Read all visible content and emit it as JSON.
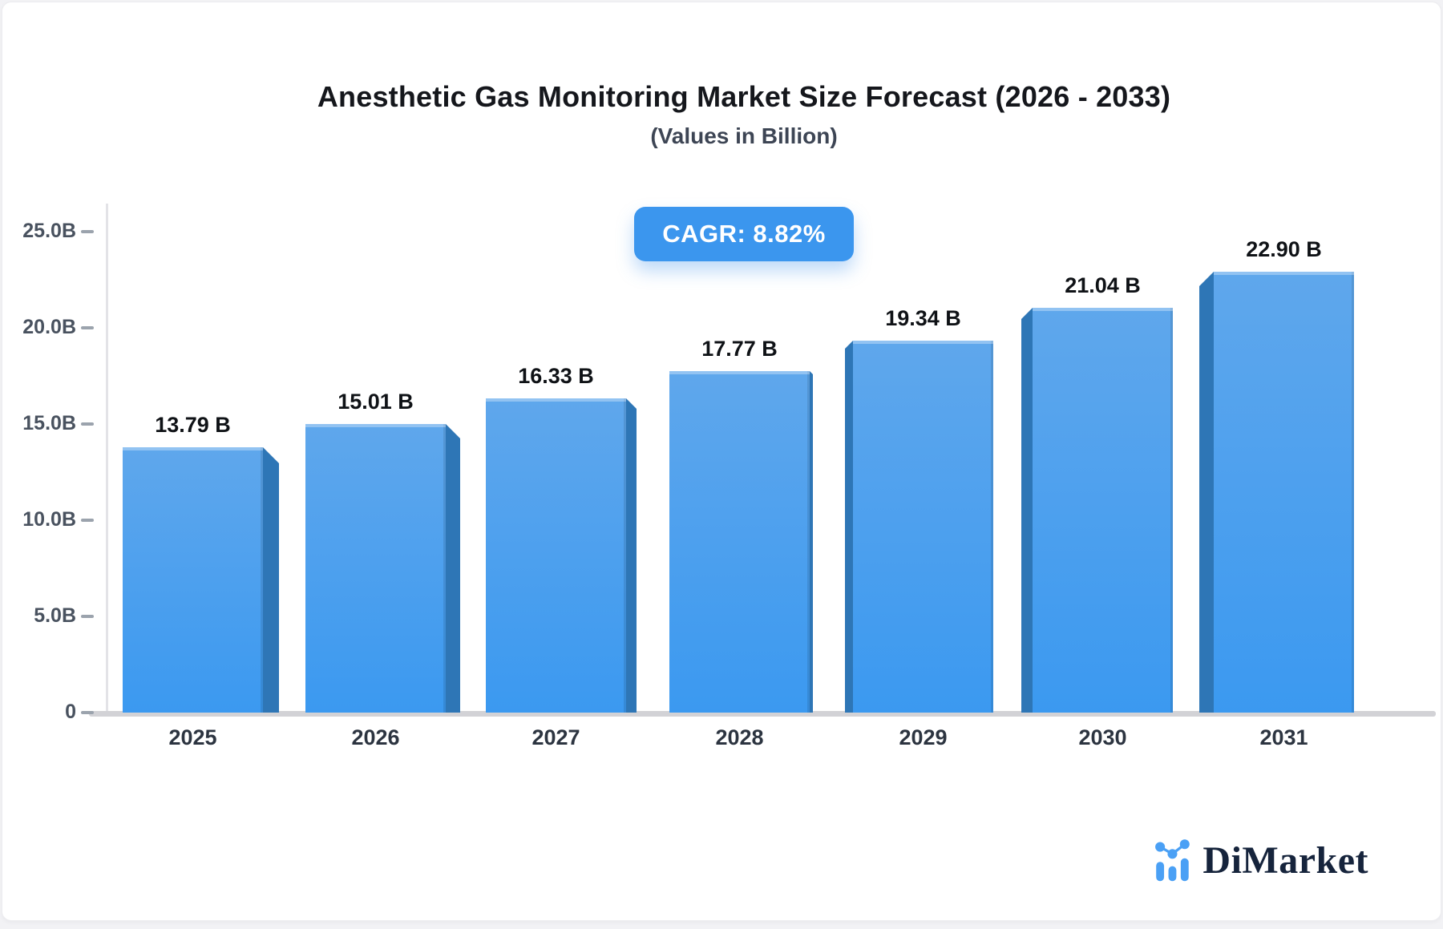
{
  "header": {
    "title": "Anesthetic Gas Monitoring Market Size Forecast (2026 - 2033)",
    "subtitle": "(Values in Billion)"
  },
  "badge": {
    "label": "CAGR: 8.82%",
    "background": "#3b96ee",
    "text_color": "#ffffff"
  },
  "chart_data": {
    "type": "bar",
    "title": "Anesthetic Gas Monitoring Market Size Forecast (2026 - 2033)",
    "subtitle": "(Values in Billion)",
    "categories": [
      "2025",
      "2026",
      "2027",
      "2028",
      "2029",
      "2030",
      "2031"
    ],
    "values": [
      13.79,
      15.01,
      16.33,
      17.77,
      19.34,
      21.04,
      22.9
    ],
    "value_labels": [
      "13.79 B",
      "15.01 B",
      "16.33 B",
      "17.77 B",
      "19.34 B",
      "21.04 B",
      "22.90 B"
    ],
    "xlabel": "",
    "ylabel": "",
    "ylim": [
      0,
      25
    ],
    "yticks": [
      {
        "value": 25,
        "label": "25.0B"
      },
      {
        "value": 20,
        "label": "20.0B"
      },
      {
        "value": 15,
        "label": "15.0B"
      },
      {
        "value": 10,
        "label": "10.0B"
      },
      {
        "value": 5,
        "label": "5.0B"
      },
      {
        "value": 0,
        "label": "0"
      }
    ],
    "grid": false,
    "legend": "none",
    "bar_style_3d": true,
    "colors": {
      "bar_face_top": "#5fa7ec",
      "bar_face_bottom": "#3b99f0",
      "bar_side": "#2e76b6"
    }
  },
  "branding": {
    "name": "DiMarket",
    "icon": "bar-chart-trend-icon",
    "icon_color": "#4aa0f5",
    "text_color": "#16243c"
  }
}
